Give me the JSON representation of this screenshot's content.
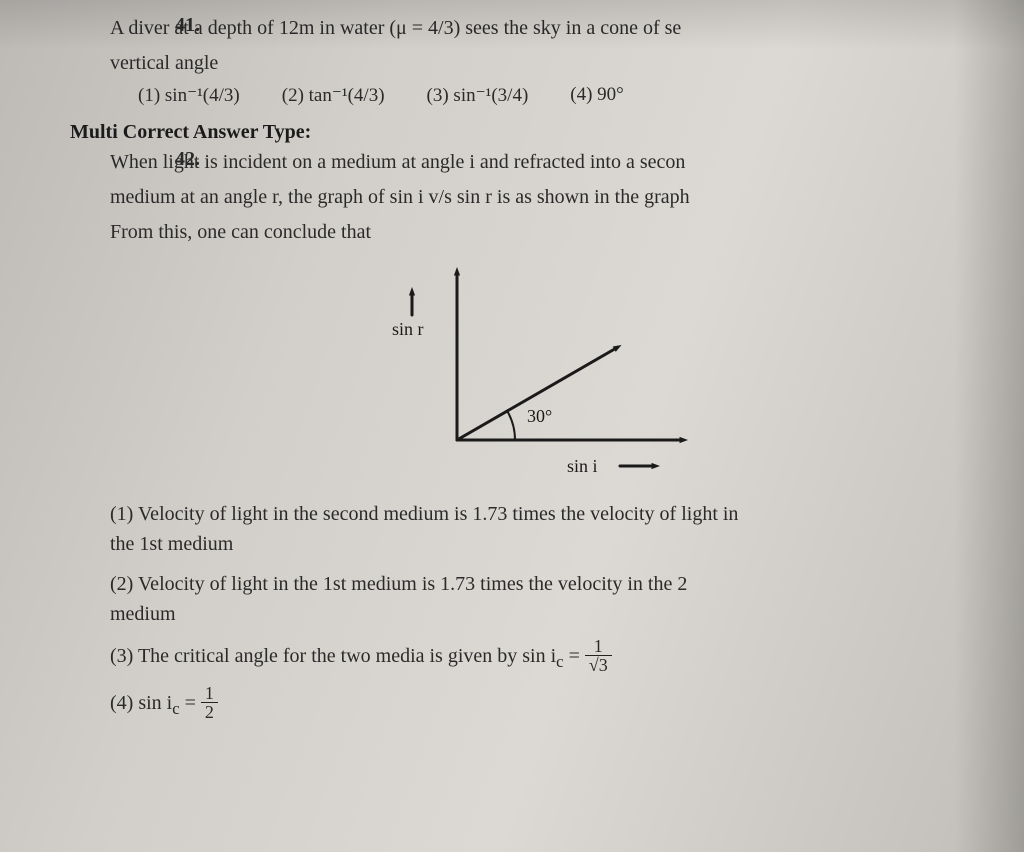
{
  "q41": {
    "number": "41.",
    "text_line1": "A diver at a depth of 12m in water (μ = 4/3) sees the sky in a cone of se",
    "text_line2": "vertical angle",
    "options": {
      "o1": "(1) sin⁻¹(4/3)",
      "o2": "(2) tan⁻¹(4/3)",
      "o3": "(3) sin⁻¹(3/4)",
      "o4": "(4) 90°"
    }
  },
  "section": "Multi Correct Answer Type:",
  "q42": {
    "number": "42.",
    "text_line1": "When light is incident on a medium at angle i and refracted into a secon",
    "text_line2": "medium at an angle r, the graph of sin i  v/s  sin r is as shown in the graph",
    "text_line3": "From this, one can conclude that",
    "diagram": {
      "y_label": "sin r",
      "x_label": "sin i",
      "angle_label": "30°",
      "angle_deg": 30,
      "stroke": "#1a1a1a",
      "stroke_width": 3,
      "font_size": 18
    },
    "options": {
      "o1_a": "(1) Velocity of light in the second medium is 1.73 times the velocity of light in",
      "o1_b": "the 1st medium",
      "o2_a": "(2) Velocity of light in the 1st medium is 1.73 times the velocity in the 2",
      "o2_b": "medium",
      "o3_prefix": "(3) The critical angle for the two media is given by sin i",
      "o3_sub": "c",
      "o3_eq": " = ",
      "o3_num": "1",
      "o3_den": "√3",
      "o4_prefix": "(4) sin i",
      "o4_sub": "c",
      "o4_eq": " = ",
      "o4_num": "1",
      "o4_den": "2"
    }
  }
}
